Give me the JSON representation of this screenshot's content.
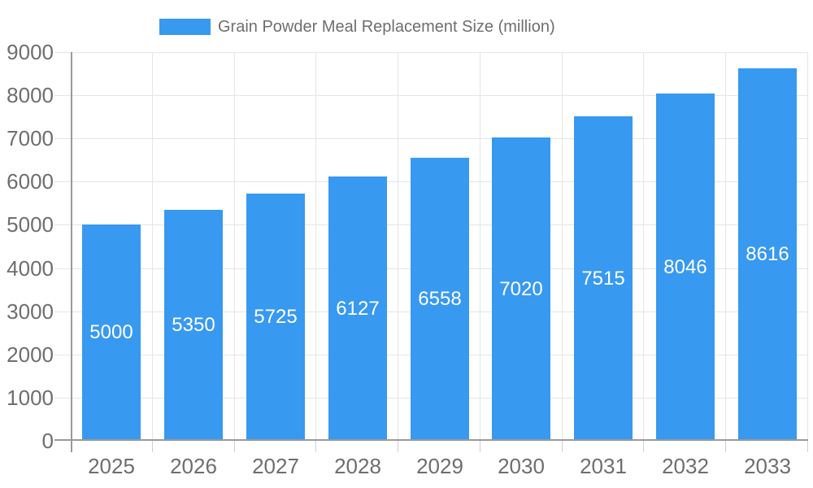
{
  "legend": {
    "label": "Grain Powder Meal Replacement Size (million)"
  },
  "colors": {
    "bar": "#3899F0",
    "grid": "#E5E5E5",
    "axis": "#9A9A9A",
    "tick": "#CFCFCF",
    "text": "#6E6E6E",
    "bar_label": "#FFFFFF",
    "background": "#FFFFFF"
  },
  "chart_data": {
    "type": "bar",
    "title": "Grain Powder Meal Replacement Size (million)",
    "series_name": "Grain Powder Meal Replacement Size (million)",
    "categories": [
      "2025",
      "2026",
      "2027",
      "2028",
      "2029",
      "2030",
      "2031",
      "2032",
      "2033"
    ],
    "values": [
      5000,
      5350,
      5725,
      6127,
      6558,
      7020,
      7515,
      8046,
      8616
    ],
    "value_labels": [
      "5000",
      "5350",
      "5725",
      "6127",
      "6558",
      "7020",
      "7515",
      "8046",
      "8616"
    ],
    "yticks": [
      "0",
      "1000",
      "2000",
      "3000",
      "4000",
      "5000",
      "6000",
      "7000",
      "8000",
      "9000"
    ],
    "ylim": [
      0,
      9000
    ],
    "ytick_step": 1000,
    "xlabel": "",
    "ylabel": "",
    "grid": true,
    "legend_position": "top",
    "value_label_position": "inside-center"
  }
}
